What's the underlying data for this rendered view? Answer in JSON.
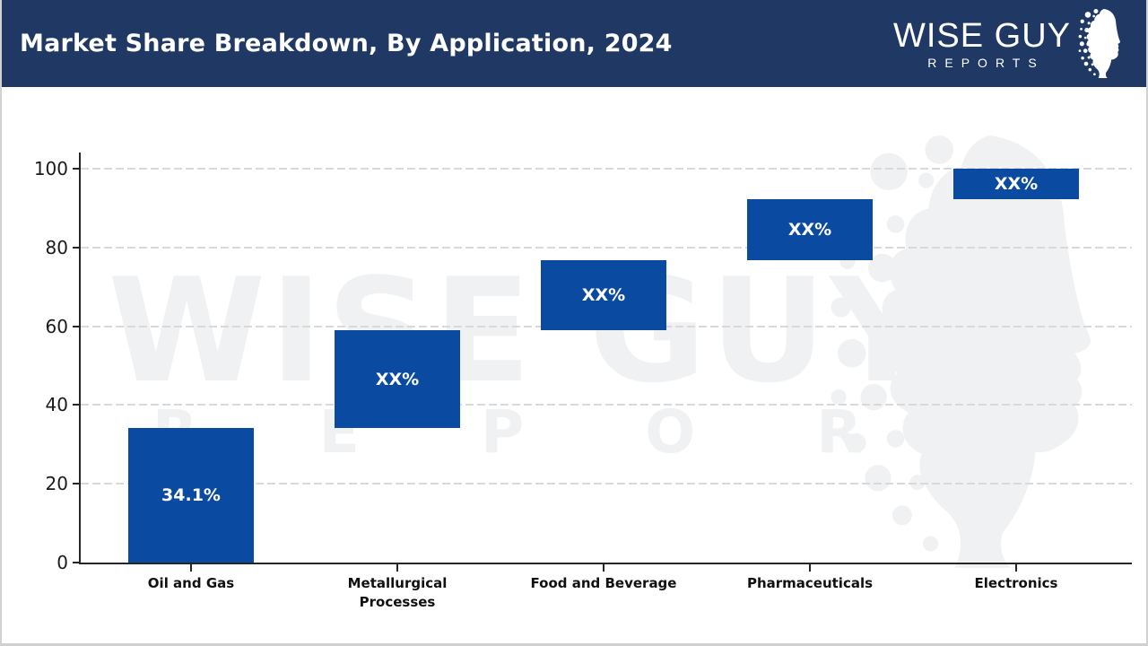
{
  "header": {
    "title": "Market Share Breakdown, By Application, 2024",
    "logo": {
      "line1": "WISE GUY",
      "line2": "REPORTS"
    }
  },
  "watermark": {
    "line1": "WISE GUY",
    "line2": "R E P O R T S"
  },
  "chart_data": {
    "type": "bar",
    "subtype": "waterfall",
    "title": "Market Share Breakdown, By Application, 2024",
    "categories": [
      "Oil and Gas",
      "Metallurgical Processes",
      "Food and Beverage",
      "Pharmaceuticals",
      "Electronics"
    ],
    "segments": [
      {
        "category": "Oil and Gas",
        "start": 0,
        "end": 34.1,
        "label": "34.1%"
      },
      {
        "category": "Metallurgical Processes",
        "start": 34.1,
        "end": 59.0,
        "label": "XX%"
      },
      {
        "category": "Food and Beverage",
        "start": 59.0,
        "end": 76.8,
        "label": "XX%"
      },
      {
        "category": "Pharmaceuticals",
        "start": 76.8,
        "end": 92.3,
        "label": "XX%"
      },
      {
        "category": "Electronics",
        "start": 92.3,
        "end": 100.0,
        "label": "XX%"
      }
    ],
    "yticks": [
      0,
      20,
      40,
      60,
      80,
      100
    ],
    "ylim": [
      0,
      104
    ],
    "grid": "horizontal-dashed",
    "legend": "none",
    "xlabel": "",
    "ylabel": ""
  },
  "colors": {
    "header_bg": "#1f3864",
    "header_text": "#ffffff",
    "bar": "#0b4aa1",
    "bar_label": "#ffffff",
    "grid": "#d9d9d9",
    "axis": "#262626",
    "tick_label": "#1a1a1a",
    "watermark": "#f0f1f3",
    "page_border": "#d2d2d2"
  }
}
